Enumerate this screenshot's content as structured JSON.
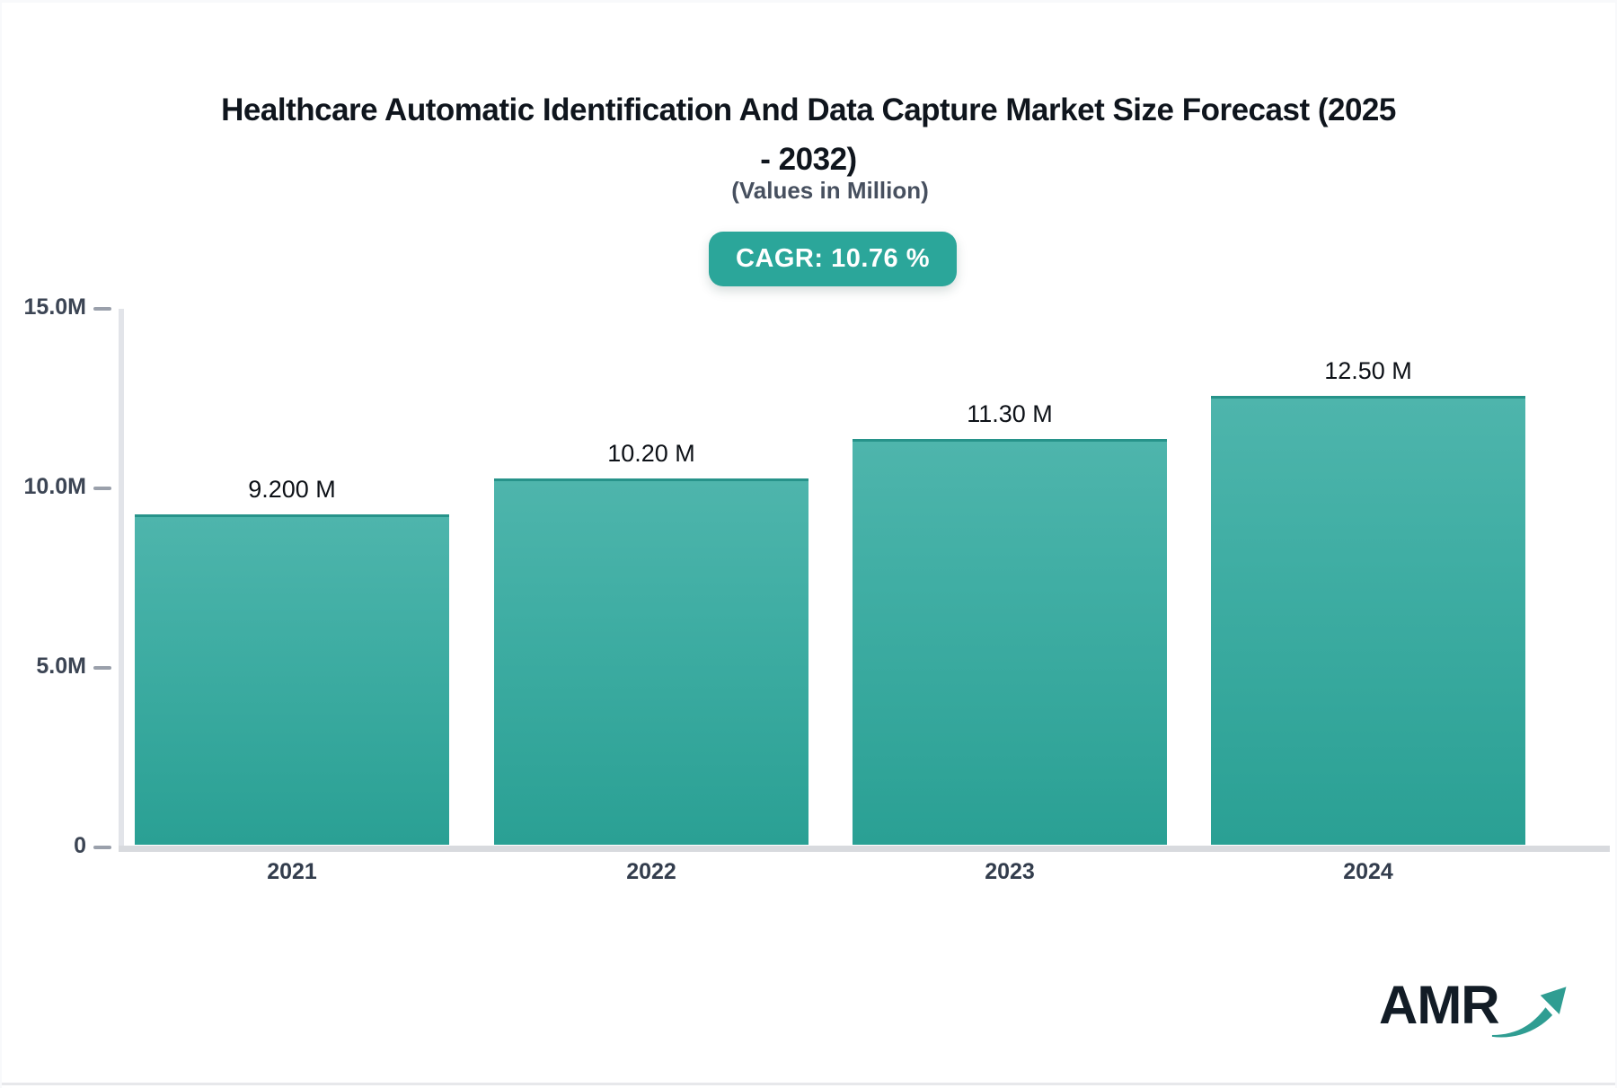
{
  "header": {
    "title_line1": "Healthcare Automatic Identification And Data Capture Market Size Forecast (2025",
    "title_line2": "- 2032)",
    "subtitle": "(Values in Million)",
    "cagr_label": "CAGR: 10.76 %"
  },
  "chart_data": {
    "type": "bar",
    "title": "Healthcare Automatic Identification And Data Capture Market Size Forecast (2025 - 2032)",
    "subtitle": "(Values in Million)",
    "cagr_percent": 10.76,
    "unit": "Million",
    "categories": [
      "2021",
      "2022",
      "2023",
      "2024"
    ],
    "values": [
      9.2,
      10.2,
      11.3,
      12.5
    ],
    "value_labels": [
      "9.200 M",
      "10.20 M",
      "11.30 M",
      "12.50 M"
    ],
    "ylim": [
      0,
      15
    ],
    "yticks": [
      {
        "label": "15.0M",
        "value": 15
      },
      {
        "label": "10.0M",
        "value": 10
      },
      {
        "label": "5.0M",
        "value": 5
      },
      {
        "label": "0",
        "value": 0
      }
    ],
    "grid": false,
    "legend_position": "none",
    "bar_color": "#3aaca0",
    "bar_side_color": "#1e7b6f",
    "accent_color": "#2ba69a"
  },
  "branding": {
    "logo_text": "AMR"
  },
  "colors": {
    "title": "#0f151d",
    "subtitle": "#47505f",
    "badge_bg": "#2ba69a",
    "axis_line": "#e2e4e9",
    "baseline": "#d8dade",
    "tick_label": "#3c4554"
  }
}
